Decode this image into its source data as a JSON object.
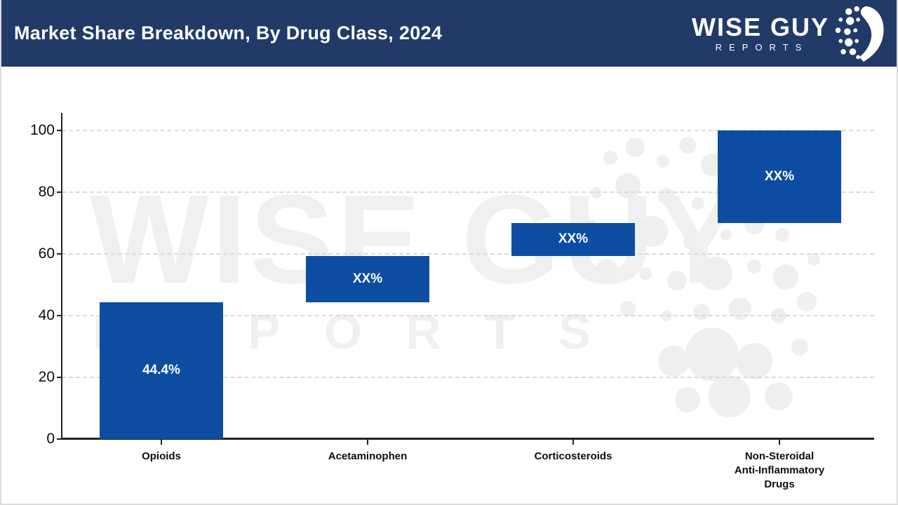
{
  "header": {
    "title": "Market Share Breakdown, By Drug Class, 2024",
    "logo": {
      "name": "WISE GUY",
      "subtitle": "REPORTS"
    }
  },
  "watermark": {
    "line1": "WISE GUY",
    "line2": "REPORTS"
  },
  "colors": {
    "header_bg": "#223a68",
    "bar": "#0d4da1",
    "bar_label": "#ffffff",
    "grid": "#d9d9d9",
    "axis": "#222222",
    "watermark": "#f0f0f0"
  },
  "chart_data": {
    "type": "bar",
    "subtype": "waterfall",
    "title": "Market Share Breakdown, By Drug Class, 2024",
    "categories": [
      "Opioids",
      "Acetaminophen",
      "Corticosteroids",
      "Non-Steroidal\nAnti-Inflammatory\nDrugs"
    ],
    "segments": [
      {
        "category": "Opioids",
        "start": 0,
        "end": 44.4,
        "value_label": "44.4%"
      },
      {
        "category": "Acetaminophen",
        "start": 44.4,
        "end": 59.4,
        "value_label": "XX%"
      },
      {
        "category": "Corticosteroids",
        "start": 59.4,
        "end": 70,
        "value_label": "XX%"
      },
      {
        "category": "Non-Steroidal Anti-Inflammatory Drugs",
        "start": 70,
        "end": 100,
        "value_label": "XX%"
      }
    ],
    "yticks": [
      0,
      20,
      40,
      60,
      80,
      100
    ],
    "ylim": [
      0,
      105
    ],
    "xlabel": "",
    "ylabel": "",
    "grid": "horizontal-dashed",
    "legend": "none"
  }
}
